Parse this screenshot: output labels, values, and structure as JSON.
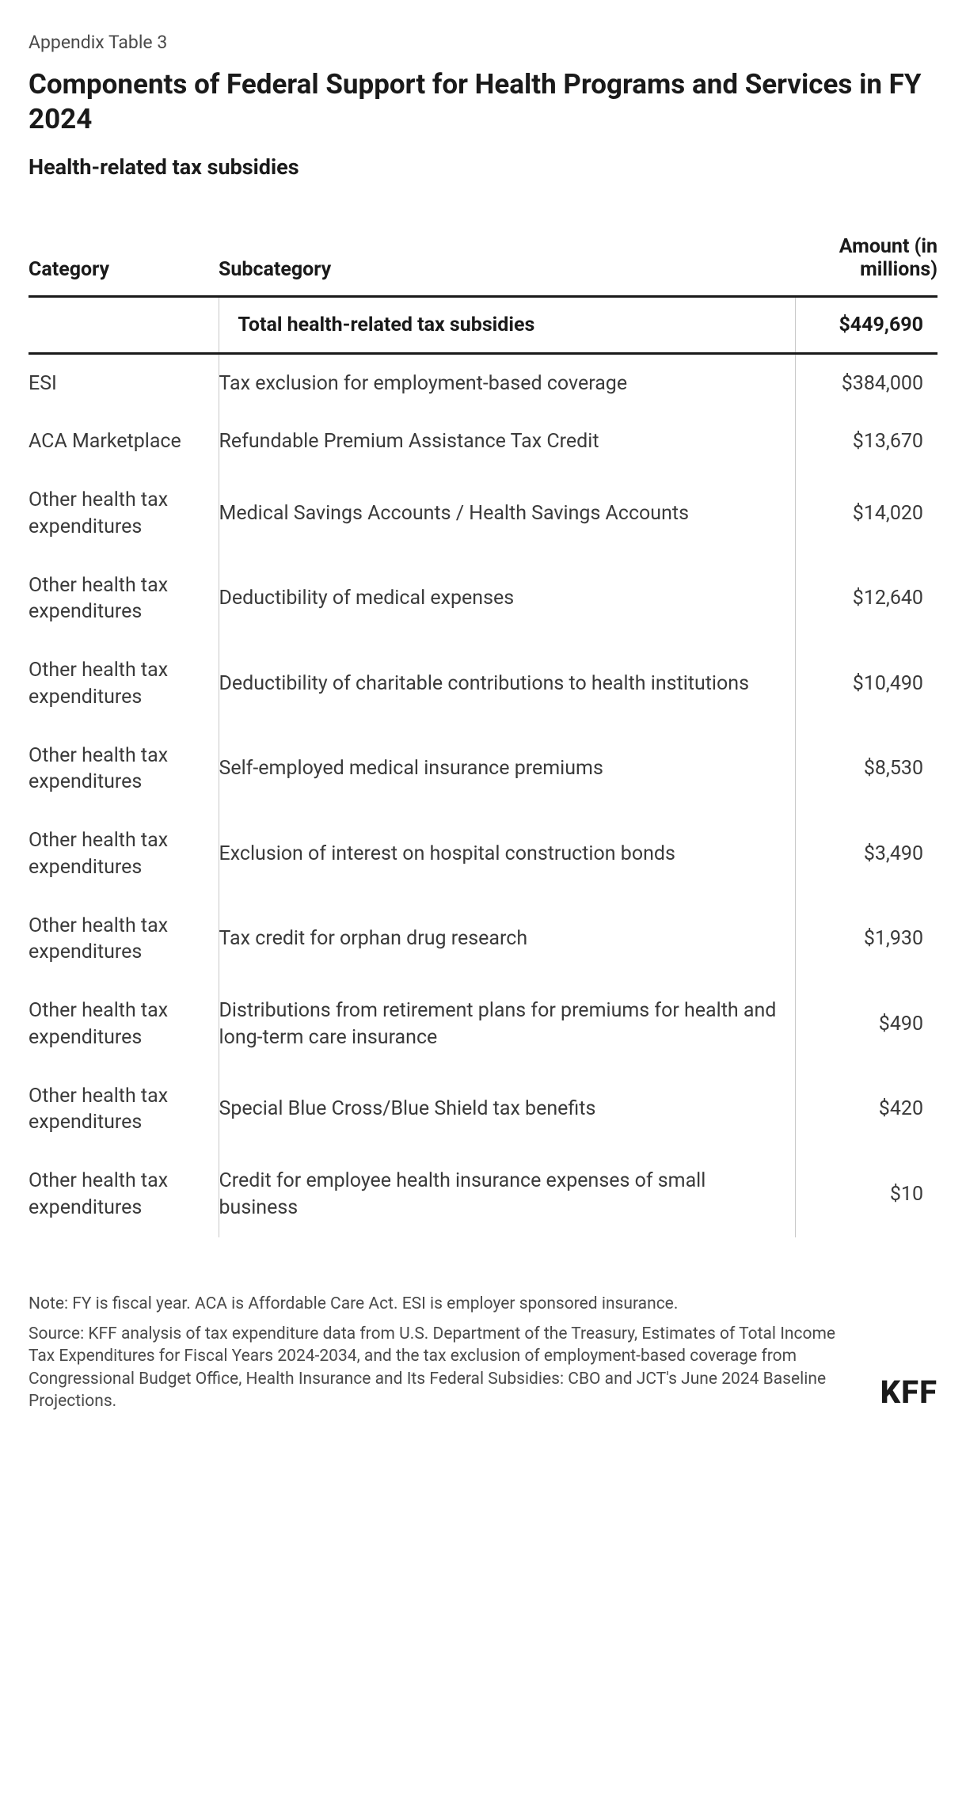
{
  "header": {
    "supertitle": "Appendix Table 3",
    "title": "Components of Federal Support for Health Programs and Services in FY 2024",
    "subtitle": "Health-related tax subsidies"
  },
  "table": {
    "columns": [
      "Category",
      "Subcategory",
      "Amount (in millions)"
    ],
    "total_row": {
      "category": "",
      "subcategory": "Total health-related tax subsidies",
      "amount": "$449,690"
    },
    "rows": [
      {
        "category": "ESI",
        "subcategory": "Tax exclusion for employment-based coverage",
        "amount": "$384,000"
      },
      {
        "category": "ACA Marketplace",
        "subcategory": "Refundable Premium Assistance Tax Credit",
        "amount": "$13,670"
      },
      {
        "category": "Other health tax expenditures",
        "subcategory": "Medical Savings Accounts / Health Savings Accounts",
        "amount": "$14,020"
      },
      {
        "category": "Other health tax expenditures",
        "subcategory": "Deductibility of medical expenses",
        "amount": "$12,640"
      },
      {
        "category": "Other health tax expenditures",
        "subcategory": "Deductibility of charitable contributions to health institutions",
        "amount": "$10,490"
      },
      {
        "category": "Other health tax expenditures",
        "subcategory": "Self-employed medical insurance premiums",
        "amount": "$8,530"
      },
      {
        "category": "Other health tax expenditures",
        "subcategory": "Exclusion of interest on hospital construction bonds",
        "amount": "$3,490"
      },
      {
        "category": "Other health tax expenditures",
        "subcategory": "Tax credit for orphan drug research",
        "amount": "$1,930"
      },
      {
        "category": "Other health tax expenditures",
        "subcategory": "Distributions from retirement plans for premiums for health and long-term care insurance",
        "amount": "$490"
      },
      {
        "category": "Other health tax expenditures",
        "subcategory": "Special Blue Cross/Blue Shield tax benefits",
        "amount": "$420"
      },
      {
        "category": "Other health tax expenditures",
        "subcategory": "Credit for employee health insurance expenses of small business",
        "amount": "$10"
      }
    ]
  },
  "footer": {
    "note": "Note: FY is fiscal year. ACA is Affordable Care Act. ESI is employer sponsored insurance.",
    "source": "Source: KFF analysis of tax expenditure data from U.S. Department of the Treasury, Estimates of Total Income Tax Expenditures for Fiscal Years 2024-2034, and the tax exclusion of employment-based coverage from Congressional Budget Office, Health Insurance and Its Federal Subsidies: CBO and JCT's June 2024 Baseline Projections.",
    "logo": "KFF"
  },
  "style": {
    "background_color": "#ffffff",
    "text_color": "#2b2b2b",
    "heading_color": "#1a1a1a",
    "muted_color": "#4a4a4a",
    "rule_color": "#1a1a1a",
    "column_divider_color": "#c9c9c9",
    "supertitle_fontsize": 23,
    "title_fontsize": 35,
    "subtitle_fontsize": 27,
    "table_fontsize": 25,
    "footer_fontsize": 21,
    "logo_fontsize": 40
  }
}
